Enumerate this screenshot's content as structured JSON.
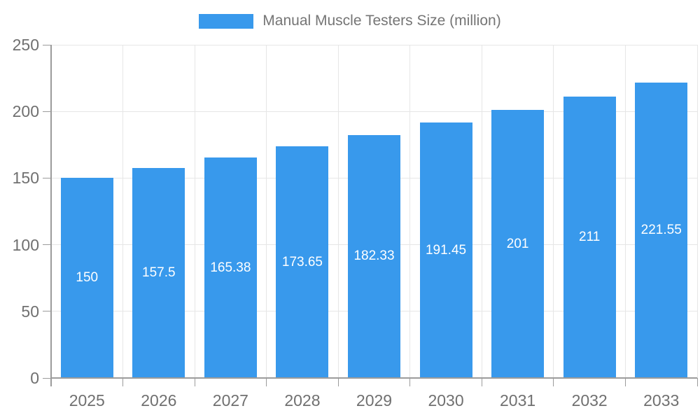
{
  "chart_data": {
    "type": "bar",
    "title": "Manual Muscle Testers Size (million)",
    "categories": [
      "2025",
      "2026",
      "2027",
      "2028",
      "2029",
      "2030",
      "2031",
      "2032",
      "2033"
    ],
    "values": [
      150,
      157.5,
      165.38,
      173.65,
      182.33,
      191.45,
      201,
      211,
      221.55
    ],
    "value_labels": [
      "150",
      "157.5",
      "165.38",
      "173.65",
      "182.33",
      "191.45",
      "201",
      "211",
      "221.55"
    ],
    "xlabel": "",
    "ylabel": "",
    "ylim": [
      0,
      250
    ],
    "yticks": [
      0,
      50,
      100,
      150,
      200,
      250
    ],
    "grid": true,
    "legend_position": "top",
    "bar_color": "#3899EC",
    "value_label_color": "#FFFFFF"
  },
  "colors": {
    "background": "#FFFFFF",
    "grid": "#E6E6E6",
    "axis": "#9B9B9B",
    "tick_text": "#707070",
    "legend_text": "#757575"
  }
}
